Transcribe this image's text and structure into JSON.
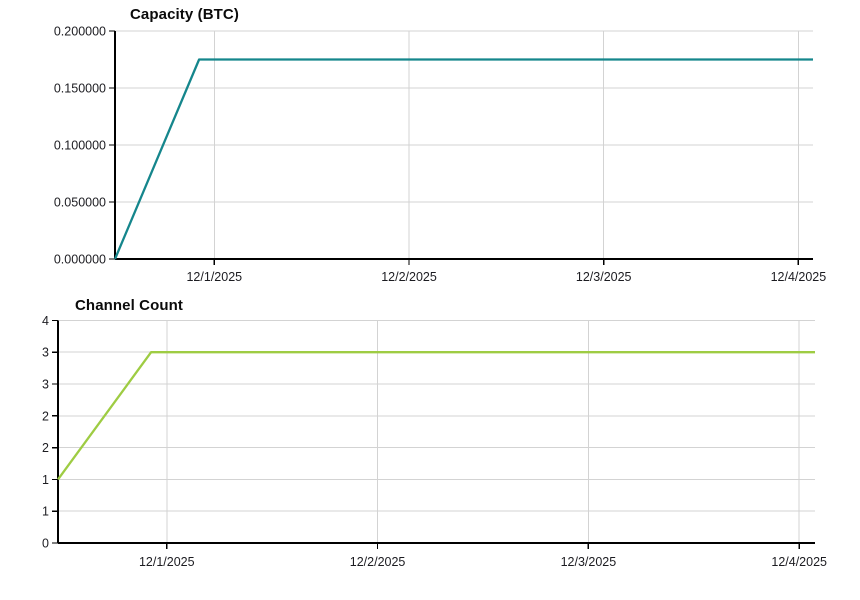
{
  "page": {
    "background": "#ffffff"
  },
  "colors": {
    "capacity_line": "#15868c",
    "channel_line": "#9ecc43",
    "gridline": "#d3d3d3",
    "axis": "#000000",
    "tick_label_text": "#1c1c21",
    "title_text": "#0b0b0b"
  },
  "chart_data": [
    {
      "type": "line",
      "title": "Capacity (BTC)",
      "xlabel": "",
      "ylabel": "",
      "x_reference": "days since 12/1/2025 00:00 (estimated from axis)",
      "x_domain": [
        -0.51,
        3.075
      ],
      "y_domain": [
        0,
        0.2
      ],
      "grid": true,
      "legend_position": "none",
      "x_ticks": [
        {
          "v": 0,
          "label": "12/1/2025"
        },
        {
          "v": 1,
          "label": "12/2/2025"
        },
        {
          "v": 2,
          "label": "12/3/2025"
        },
        {
          "v": 3,
          "label": "12/4/2025"
        }
      ],
      "y_ticks": [
        {
          "v": 0.0,
          "label": "0.000000"
        },
        {
          "v": 0.05,
          "label": "0.050000"
        },
        {
          "v": 0.1,
          "label": "0.100000"
        },
        {
          "v": 0.15,
          "label": "0.150000"
        },
        {
          "v": 0.2,
          "label": "0.200000"
        }
      ],
      "series": [
        {
          "name": "Capacity (BTC)",
          "color": "#15868c",
          "points": [
            [
              -0.51,
              0.0
            ],
            [
              -0.078,
              0.175
            ],
            [
              3.075,
              0.175
            ]
          ]
        }
      ]
    },
    {
      "type": "line",
      "title": "Channel Count",
      "xlabel": "",
      "ylabel": "",
      "x_reference": "days since 12/1/2025 00:00 (estimated from axis)",
      "x_domain": [
        -0.516,
        3.075
      ],
      "y_domain": [
        0,
        3.5
      ],
      "grid": true,
      "legend_position": "none",
      "x_ticks": [
        {
          "v": 0,
          "label": "12/1/2025"
        },
        {
          "v": 1,
          "label": "12/2/2025"
        },
        {
          "v": 2,
          "label": "12/3/2025"
        },
        {
          "v": 3,
          "label": "12/4/2025"
        }
      ],
      "y_ticks": [
        {
          "v": 0.0,
          "label": "0"
        },
        {
          "v": 0.5,
          "label": "1"
        },
        {
          "v": 1.0,
          "label": "1"
        },
        {
          "v": 1.5,
          "label": "2"
        },
        {
          "v": 2.0,
          "label": "2"
        },
        {
          "v": 2.5,
          "label": "3"
        },
        {
          "v": 3.0,
          "label": "3"
        },
        {
          "v": 3.5,
          "label": "4"
        }
      ],
      "series": [
        {
          "name": "Channel Count",
          "color": "#9ecc43",
          "points": [
            [
              -0.516,
              1.0
            ],
            [
              -0.0745,
              3.0
            ],
            [
              3.075,
              3.0
            ]
          ]
        }
      ]
    }
  ]
}
